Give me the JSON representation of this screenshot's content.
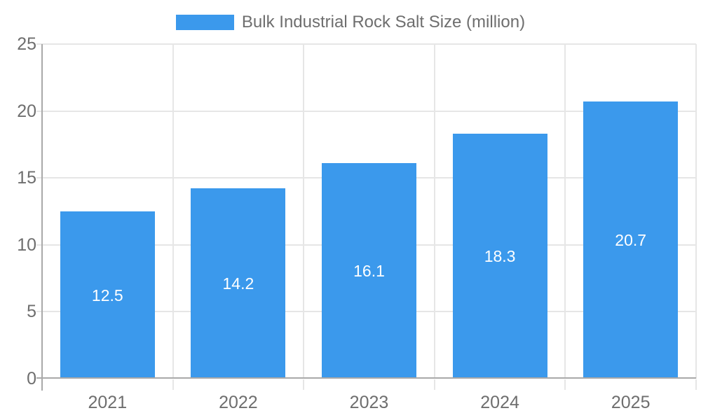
{
  "chart_data": {
    "type": "bar",
    "title": "Bulk Industrial Rock Salt Size (million)",
    "legend_position": "top",
    "categories": [
      "2021",
      "2022",
      "2023",
      "2024",
      "2025"
    ],
    "values": [
      12.5,
      14.2,
      16.1,
      18.3,
      20.7
    ],
    "value_labels": [
      "12.5",
      "14.2",
      "16.1",
      "18.3",
      "20.7"
    ],
    "xlabel": "",
    "ylabel": "",
    "ylim": [
      0,
      25
    ],
    "yticks": [
      "0",
      "5",
      "10",
      "15",
      "20",
      "25"
    ],
    "grid": true,
    "colors": {
      "bar": "#3b99ec",
      "grid_line": "#e6e6e6",
      "axis_line": "#a9a9a9",
      "axis_text": "#6e6e6e",
      "value_label_text": "#ffffff",
      "legend_text": "#6e6e6e",
      "background": "#ffffff"
    }
  }
}
